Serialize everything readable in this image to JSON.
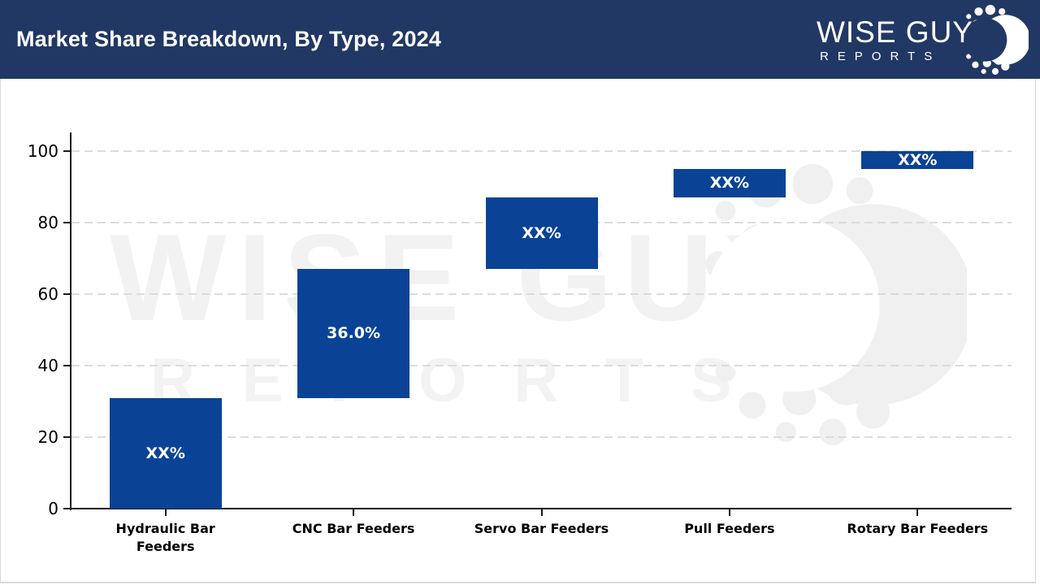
{
  "header": {
    "title": "Market Share Breakdown, By Type, 2024",
    "logo": {
      "line1": "WISE GUY",
      "line2": "REPORTS"
    }
  },
  "watermark": {
    "line1": "WISE GUY",
    "line2": "REPORTS"
  },
  "colors": {
    "header_background": "#213864",
    "bar_fill": "#0a4396",
    "bar_label_text": "#ffffff",
    "gridline": "#dcdcdc",
    "watermark_text": "#f2f2f2"
  },
  "chart_data": {
    "type": "bar",
    "subtype": "waterfall",
    "title": "Market Share Breakdown, By Type, 2024",
    "xlabel": "",
    "ylabel": "",
    "categories": [
      "Hydraulic Bar Feeders",
      "CNC Bar Feeders",
      "Servo Bar Feeders",
      "Pull Feeders",
      "Rotary Bar Feeders"
    ],
    "values": [
      31,
      36,
      20,
      8,
      5
    ],
    "segments": [
      {
        "start": 0,
        "end": 31,
        "label": "XX%"
      },
      {
        "start": 31,
        "end": 67,
        "label": "36.0%"
      },
      {
        "start": 67,
        "end": 87,
        "label": "XX%"
      },
      {
        "start": 87,
        "end": 95,
        "label": "XX%"
      },
      {
        "start": 95,
        "end": 100,
        "label": "XX%"
      }
    ],
    "bar_labels": [
      "XX%",
      "36.0%",
      "XX%",
      "XX%",
      "XX%"
    ],
    "yticks": [
      0,
      20,
      40,
      60,
      80,
      100
    ],
    "ylim": [
      0,
      105
    ],
    "grid": "horizontal-dashed",
    "legend": "none"
  }
}
